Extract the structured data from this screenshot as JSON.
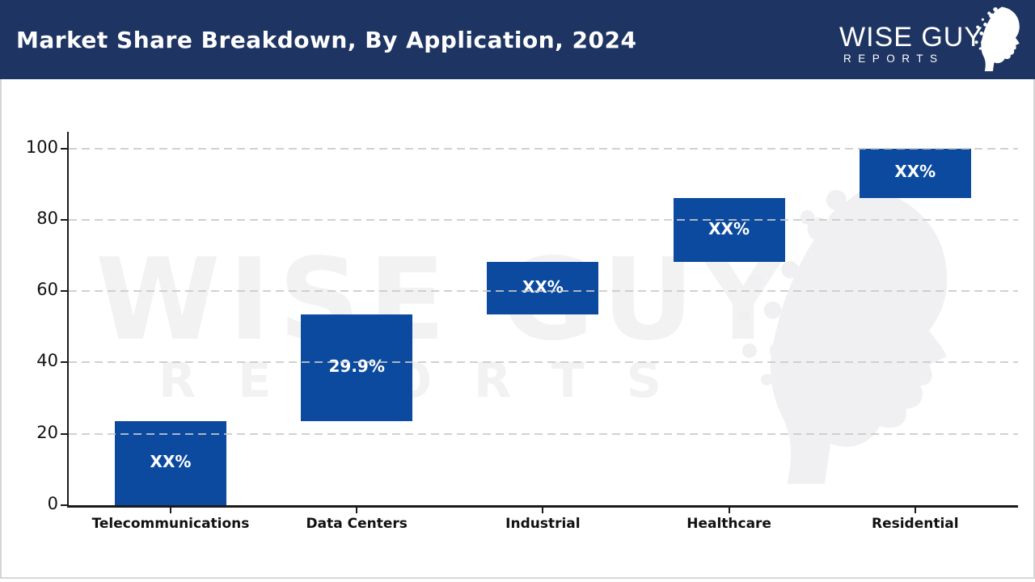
{
  "header": {
    "title": "Market Share Breakdown, By Application, 2024",
    "logo_line1": "WISE GUY",
    "logo_line2": "REPORTS"
  },
  "watermark": {
    "line1": "WISE GUY",
    "line2": "REPORTS"
  },
  "colors": {
    "header_bg": "#1e3462",
    "bar": "#0b4a9e",
    "bar_label": "#ffffff",
    "grid": "#cccccc",
    "axis": "#1a1a1a",
    "watermark": "#f2f2f3"
  },
  "chart_data": {
    "type": "bar",
    "subtype": "waterfall",
    "title": "Market Share Breakdown, By Application, 2024",
    "categories": [
      "Telecommunications",
      "Data Centers",
      "Industrial",
      "Healthcare",
      "Residential"
    ],
    "segments": [
      {
        "category": "Telecommunications",
        "start": 0,
        "end": 23.6,
        "value_label": "XX%"
      },
      {
        "category": "Data Centers",
        "start": 23.6,
        "end": 53.5,
        "value_label": "29.9%"
      },
      {
        "category": "Industrial",
        "start": 53.5,
        "end": 68.1,
        "value_label": "XX%"
      },
      {
        "category": "Healthcare",
        "start": 68.1,
        "end": 86.0,
        "value_label": "XX%"
      },
      {
        "category": "Residential",
        "start": 86.0,
        "end": 100,
        "value_label": "XX%"
      }
    ],
    "yticks": [
      0,
      20,
      40,
      60,
      80,
      100
    ],
    "ylim": [
      0,
      104.6
    ],
    "xlabel": "",
    "ylabel": "",
    "grid": "horizontal-dashed",
    "legend": "none"
  }
}
